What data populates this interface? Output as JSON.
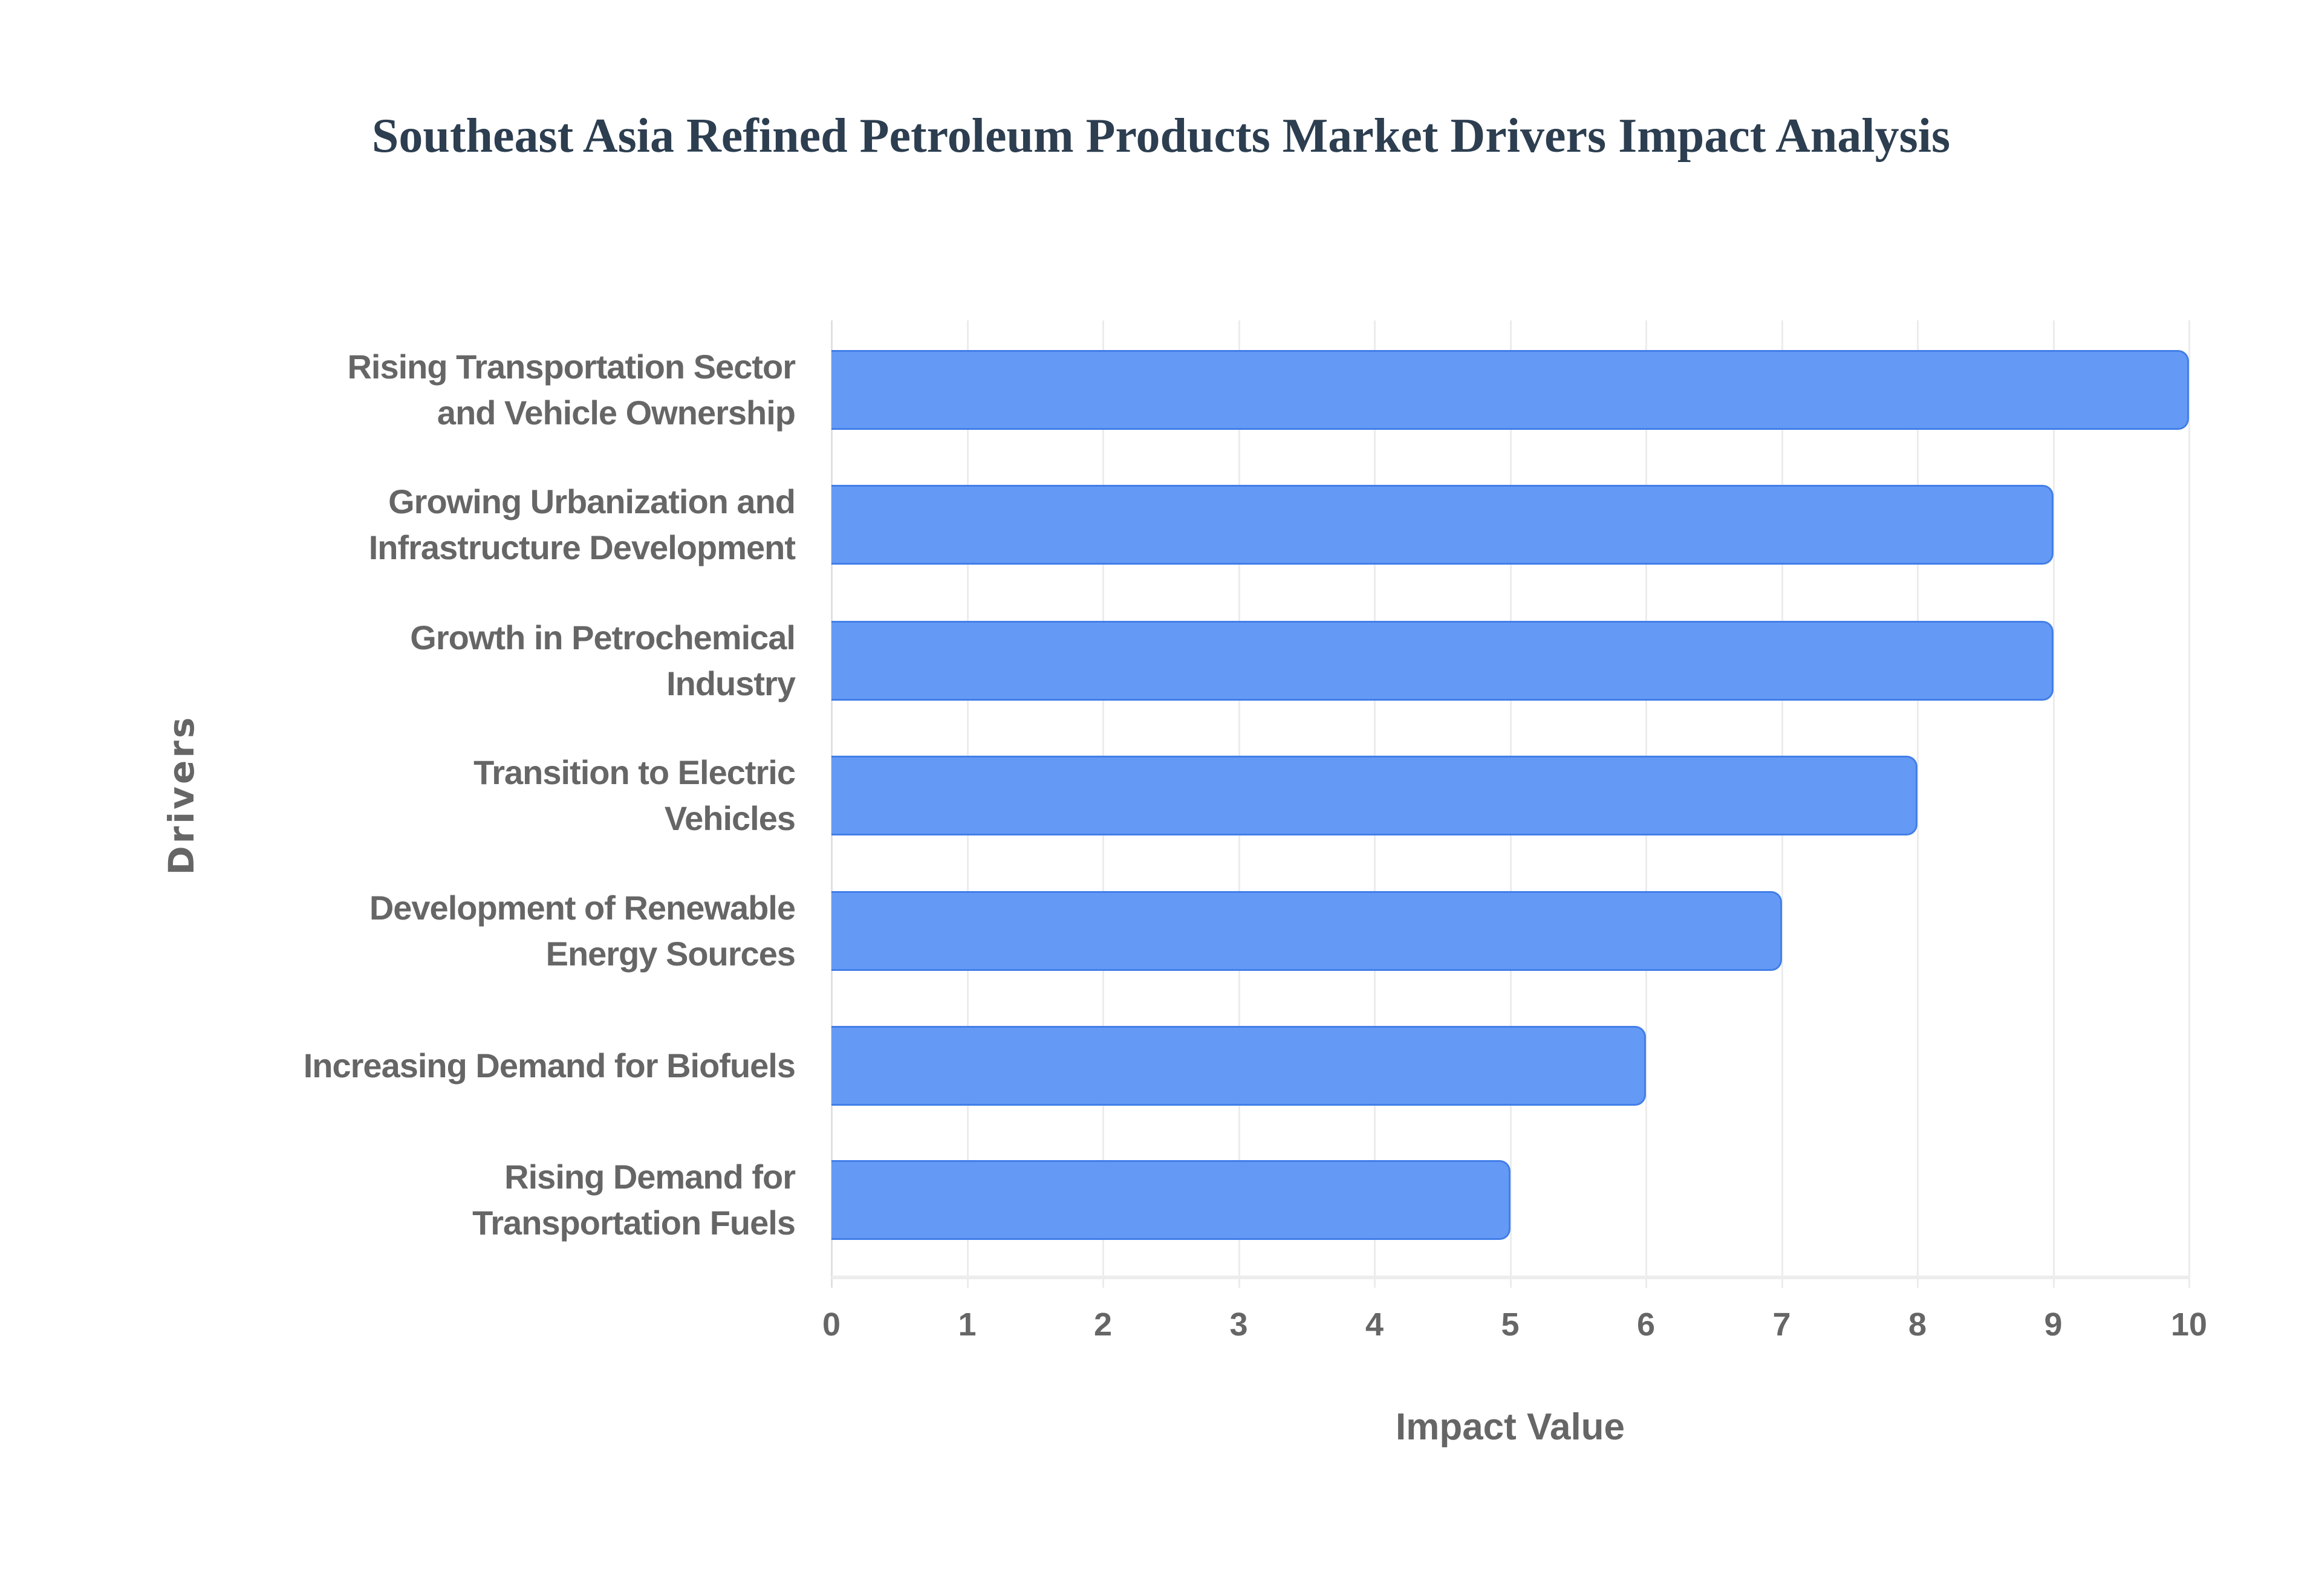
{
  "chart_data": {
    "type": "bar",
    "orientation": "horizontal",
    "title": "Southeast Asia Refined Petroleum Products Market Drivers Impact Analysis",
    "xlabel": "Impact Value",
    "ylabel": "Drivers",
    "xlim": [
      0,
      10
    ],
    "x_ticks": [
      "0",
      "1",
      "2",
      "3",
      "4",
      "5",
      "6",
      "7",
      "8",
      "9",
      "10"
    ],
    "grid": true,
    "legend": null,
    "bar_color": "#6199f5",
    "bar_border_color": "#3f7ce9",
    "categories": [
      "Rising Transportation Sector and Vehicle Ownership",
      "Growing Urbanization and Infrastructure Development",
      "Growth in Petrochemical Industry",
      "Transition to Electric Vehicles",
      "Development of Renewable Energy Sources",
      "Increasing Demand for Biofuels",
      "Rising Demand for Transportation Fuels"
    ],
    "category_labels_display": [
      "Rising Transportation Sector\nand Vehicle Ownership",
      "Growing Urbanization and\nInfrastructure Development",
      "Growth in Petrochemical\nIndustry",
      "Transition to Electric\nVehicles",
      "Development of Renewable\nEnergy Sources",
      "Increasing Demand for Biofuels",
      "Rising Demand for\nTransportation Fuels"
    ],
    "values": [
      10,
      9,
      9,
      8,
      7,
      6,
      5
    ]
  }
}
